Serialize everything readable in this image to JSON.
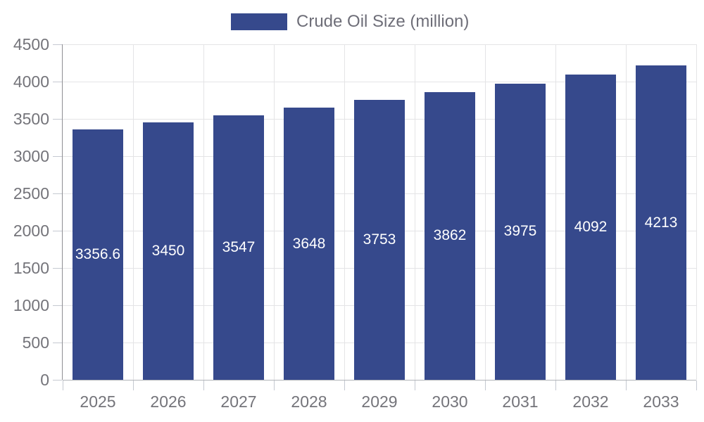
{
  "legend": {
    "label": "Crude Oil Size (million)"
  },
  "colors": {
    "bar": "#36498C",
    "value_label": "#FFFFFF",
    "legend_text": "#6E6E78",
    "axis_label": "#74747A",
    "grid_line": "#E4E4E6",
    "x_axis_line": "#B1B4B9",
    "y_axis_line": "#8E8E93",
    "tick": "#C5C9D1",
    "background": "#FFFFFF"
  },
  "chart_data": {
    "type": "bar",
    "title": "",
    "categories": [
      "2025",
      "2026",
      "2027",
      "2028",
      "2029",
      "2030",
      "2031",
      "2032",
      "2033"
    ],
    "series": [
      {
        "name": "Crude Oil Size (million)",
        "values": [
          3356.6,
          3450,
          3547,
          3648,
          3753,
          3862,
          3975,
          4092,
          4213
        ],
        "value_labels": [
          "3356.6",
          "3450",
          "3547",
          "3648",
          "3753",
          "3862",
          "3975",
          "4092",
          "4213"
        ]
      }
    ],
    "xlabel": "",
    "ylabel": "",
    "ylim": [
      0,
      4500
    ],
    "y_ticks": [
      0,
      500,
      1000,
      1500,
      2000,
      2500,
      3000,
      3500,
      4000,
      4500
    ],
    "grid": true,
    "legend_position": "top-center",
    "value_label_position": "inside-center"
  }
}
